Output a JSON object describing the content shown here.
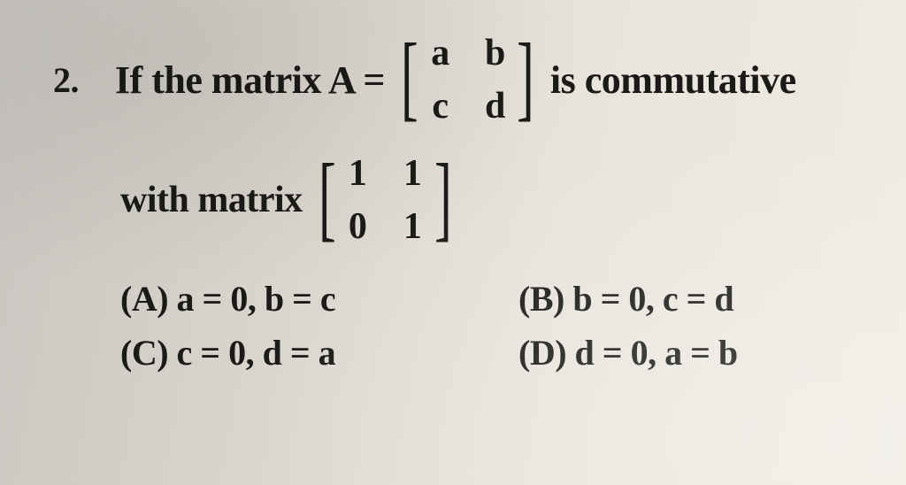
{
  "question": {
    "number": "2.",
    "prefix": "If the matrix A =",
    "matrixA": {
      "r1c1": "a",
      "r1c2": "b",
      "r2c1": "c",
      "r2c2": "d"
    },
    "suffix": "is commutative",
    "line2_prefix": "with matrix",
    "matrixB": {
      "r1c1": "1",
      "r1c2": "1",
      "r2c1": "0",
      "r2c2": "1"
    }
  },
  "options": {
    "A": "(A) a = 0, b = c",
    "B": "(B) b = 0, c = d",
    "C": "(C) c = 0, d = a",
    "D": "(D) d = 0, a = b"
  },
  "colors": {
    "text": "#1a1a18",
    "bg_light": "#f0ece4",
    "bg_dark": "#c8c5c0"
  }
}
